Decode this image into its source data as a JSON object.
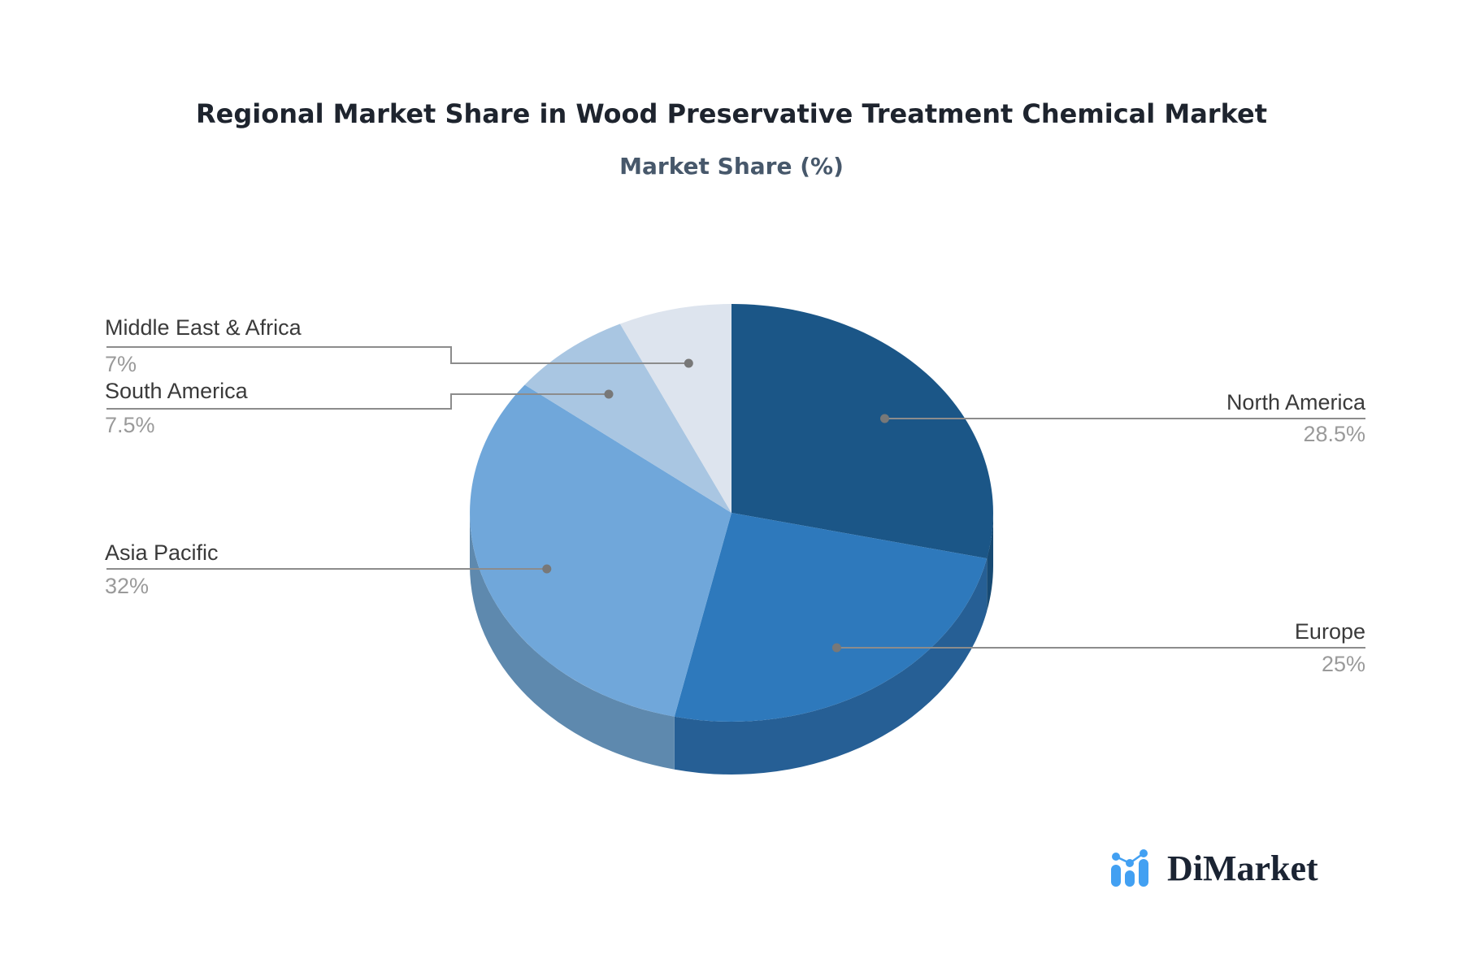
{
  "title": "Regional Market Share in Wood Preservative Treatment Chemical Market",
  "subtitle": "Market Share (%)",
  "chart_data": {
    "type": "pie",
    "title": "Regional Market Share in Wood Preservative Treatment Chemical Market",
    "subtitle": "Market Share (%)",
    "unit": "%",
    "labels": [
      "North America",
      "Europe",
      "Asia Pacific",
      "South America",
      "Middle East & Africa"
    ],
    "values": [
      28.5,
      25,
      32,
      7.5,
      7
    ],
    "value_labels": [
      "28.5%",
      "25%",
      "32%",
      "7.5%",
      "7%"
    ],
    "colors": [
      "#1b5687",
      "#2e79bc",
      "#70a7da",
      "#a9c6e2",
      "#dde4ee"
    ],
    "side_colors": [
      "#174a73",
      "#265f95",
      "#5e89ae",
      "#8fa9c4",
      "#c2cddc"
    ],
    "start_angle_deg": 0,
    "direction": "clockwise",
    "style": "3d",
    "legend": "none",
    "label_line_color": "#8c8c8c",
    "dot_color": "#787878",
    "label_text_color": "#3a3a3a",
    "value_text_color": "#9a9a9a"
  },
  "logo": {
    "name": "DiMarket",
    "icon": "bar-chart-logo-icon",
    "accent_color": "#42a0f2",
    "text_color": "#1b2433"
  }
}
